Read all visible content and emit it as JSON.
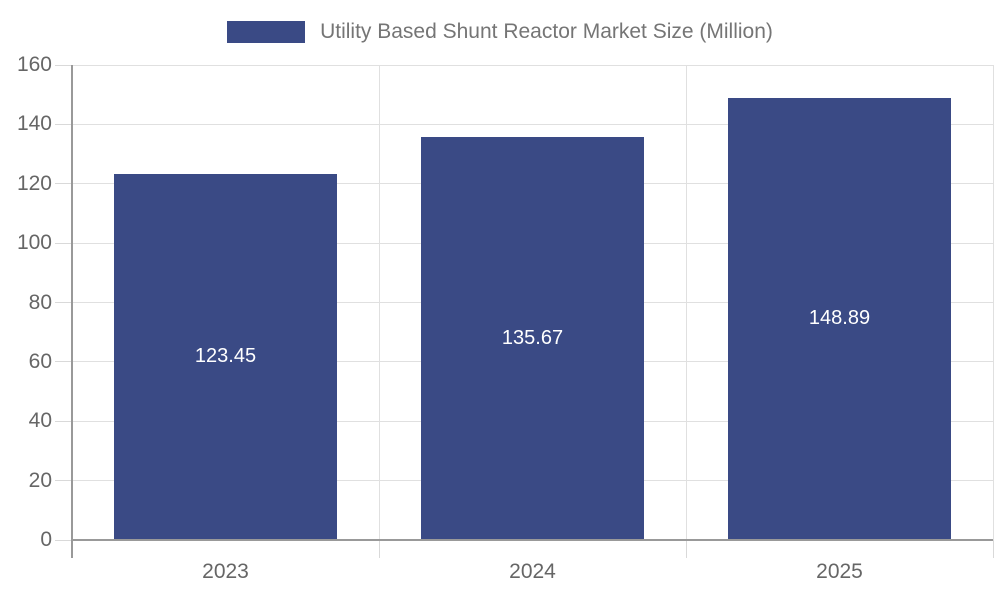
{
  "legend": {
    "label": "Utility Based Shunt Reactor Market Size (Million)"
  },
  "chart_data": {
    "type": "bar",
    "title": "Utility Based Shunt Reactor Market Size (Million)",
    "categories": [
      "2023",
      "2024",
      "2025"
    ],
    "values": [
      123.45,
      135.67,
      148.89
    ],
    "value_labels": [
      "123.45",
      "135.67",
      "148.89"
    ],
    "series": [
      {
        "name": "Utility Based Shunt Reactor Market Size (Million)",
        "values": [
          123.45,
          135.67,
          148.89
        ]
      }
    ],
    "xlabel": "",
    "ylabel": "",
    "ylim": [
      0,
      160
    ],
    "yticks": [
      0,
      20,
      40,
      60,
      80,
      100,
      120,
      140,
      160
    ],
    "grid": true,
    "legend_position": "top-center",
    "bar_label_position": "center"
  },
  "colors": {
    "background": "#FFFFFF",
    "bar": "#3A4A85",
    "gridline": "#E0E0E0",
    "axis_line": "#999999",
    "tick_mark": "#D9D9D9",
    "tick_text": "#666666",
    "legend_text": "#757575",
    "bar_label": "#FFFFFF"
  }
}
